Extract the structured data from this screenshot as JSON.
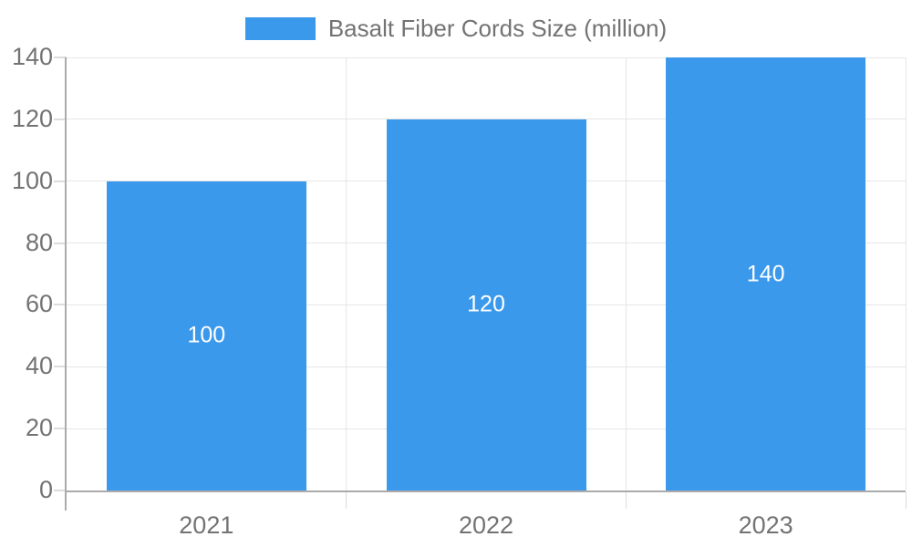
{
  "chart_data": {
    "type": "bar",
    "categories": [
      "2021",
      "2022",
      "2023"
    ],
    "series": [
      {
        "name": "Basalt Fiber Cords Size (million)",
        "values": [
          100,
          120,
          140
        ]
      }
    ],
    "title": "",
    "xlabel": "",
    "ylabel": "",
    "ylim": [
      0,
      140
    ],
    "yticks": [
      0,
      20,
      40,
      60,
      80,
      100,
      120,
      140
    ],
    "grid": true,
    "legend_position": "top-center",
    "data_labels": {
      "position": "middle-of-bar",
      "values": [
        "100",
        "120",
        "140"
      ]
    },
    "colors": {
      "bar": "#3B99EC",
      "grid": "#E6E6E6",
      "tick": "#DCDCDC",
      "axis": "#ABABAB",
      "axis_text": "#737373",
      "legend_text": "#737373",
      "data_label_text": "#FFFFFF",
      "background": "#FFFFFF"
    }
  }
}
